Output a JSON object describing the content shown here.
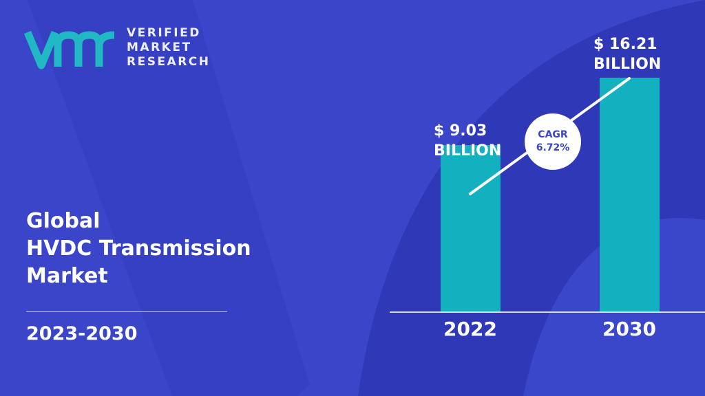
{
  "brand": {
    "logo_mark": "vmr",
    "line1": "VERIFIED",
    "line2": "MARKET",
    "line3": "RESEARCH"
  },
  "heading": {
    "line1": "Global",
    "line2": "HVDC Transmission",
    "line3": "Market",
    "period": "2023-2030"
  },
  "colors": {
    "background": "#3a45c9",
    "bar": "#13b0c0",
    "logo": "#1fb8c3"
  },
  "chart_data": {
    "type": "bar",
    "categories": [
      "2022",
      "2030"
    ],
    "values": [
      9.03,
      16.21
    ],
    "value_labels": [
      [
        "$ 9.03",
        "BILLION"
      ],
      [
        "$ 16.21",
        "BILLION"
      ]
    ],
    "unit": "USD Billion",
    "annotation": {
      "label": "CAGR",
      "value": "6.72%"
    },
    "grid": false
  }
}
